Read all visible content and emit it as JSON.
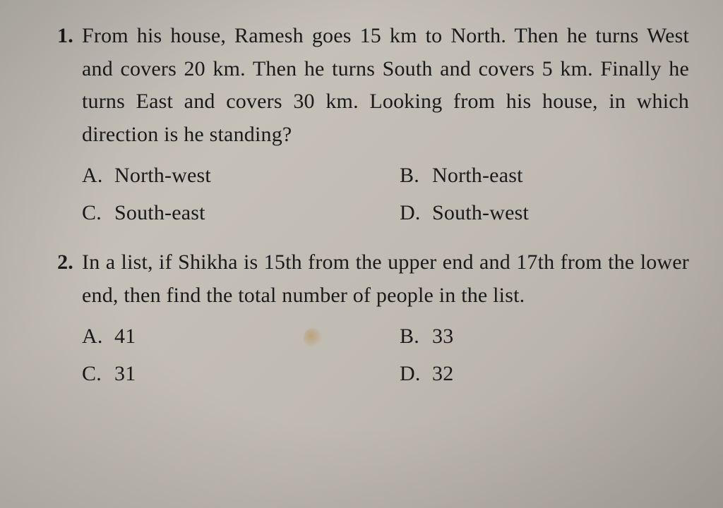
{
  "page": {
    "background_gradient": [
      "#b8b4ad",
      "#c5c0b8",
      "#bfbab2",
      "#b0aba3"
    ],
    "font_family": "Times New Roman",
    "text_color": "#1a1a1a",
    "body_fontsize_pt": 22,
    "line_height": 1.55
  },
  "questions": [
    {
      "number": "1.",
      "text": "From his house, Ramesh goes 15 km to North. Then he turns West and covers 20 km. Then he turns South and covers 5 km. Finally he turns East and covers 30 km. Looking from his house, in which direction is he standing?",
      "options": [
        {
          "letter": "A.",
          "text": "North-west"
        },
        {
          "letter": "B.",
          "text": "North-east"
        },
        {
          "letter": "C.",
          "text": "South-east"
        },
        {
          "letter": "D.",
          "text": "South-west"
        }
      ]
    },
    {
      "number": "2.",
      "text": "In a list, if Shikha is 15th from the upper end and 17th from the lower end, then find the total number of people in the list.",
      "options": [
        {
          "letter": "A.",
          "text": "41"
        },
        {
          "letter": "B.",
          "text": "33"
        },
        {
          "letter": "C.",
          "text": "31"
        },
        {
          "letter": "D.",
          "text": "32"
        }
      ]
    }
  ]
}
